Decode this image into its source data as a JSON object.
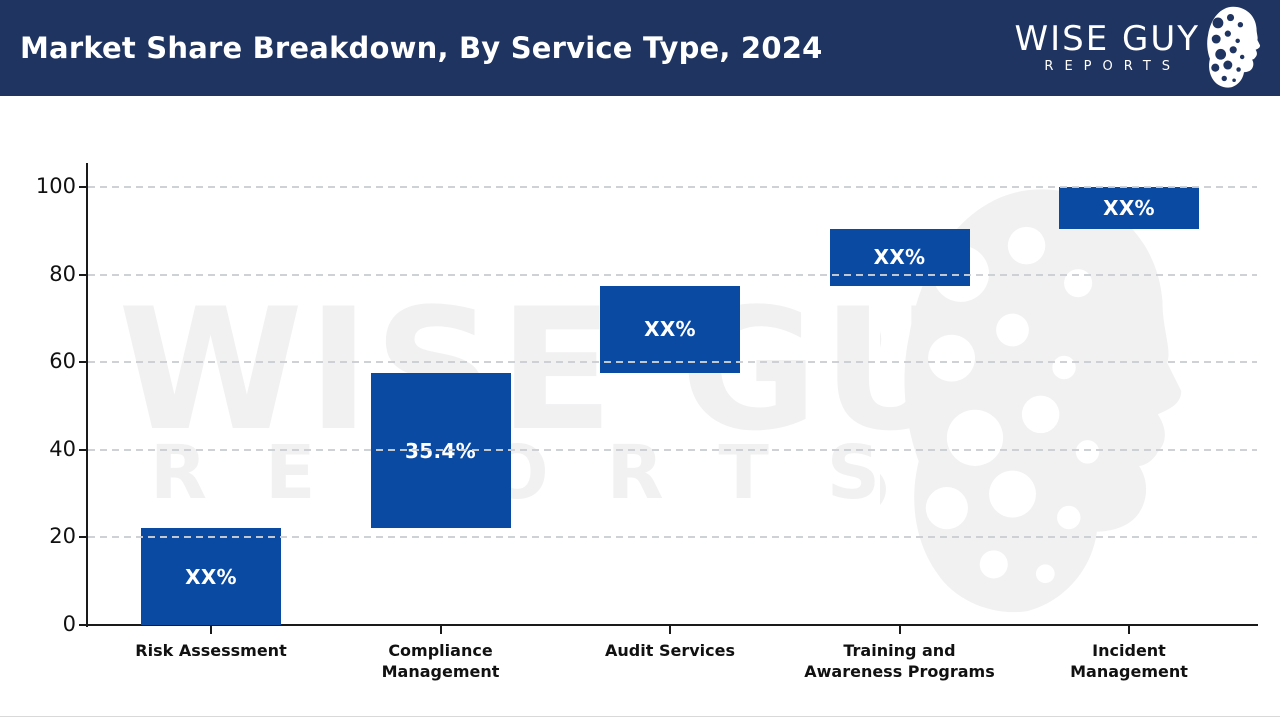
{
  "header": {
    "title": "Market Share Breakdown, By Service Type, 2024",
    "logo": {
      "line1": "WISE GUY",
      "line2": "REPORTS"
    }
  },
  "watermark": {
    "line1": "WISE GUY",
    "line2": "REPORTS"
  },
  "chart_data": {
    "type": "bar",
    "subtype": "stacked-waterfall",
    "title": "Market Share Breakdown, By Service Type, 2024",
    "categories": [
      "Risk Assessment",
      "Compliance Management",
      "Audit Services",
      "Training and Awareness Programs",
      "Incident Management"
    ],
    "category_lines": [
      [
        "Risk Assessment"
      ],
      [
        "Compliance",
        "Management"
      ],
      [
        "Audit Services"
      ],
      [
        "Training and",
        "Awareness Programs"
      ],
      [
        "Incident",
        "Management"
      ]
    ],
    "values": [
      22.1,
      35.4,
      20.0,
      12.9,
      9.6
    ],
    "cumulative_ends": [
      22.1,
      57.5,
      77.5,
      90.4,
      100
    ],
    "bar_labels": [
      "XX%",
      "35.4%",
      "XX%",
      "XX%",
      "XX%"
    ],
    "yticks": [
      0,
      20,
      40,
      60,
      80,
      100
    ],
    "ylim": [
      0,
      105
    ],
    "xlabel": "",
    "ylabel": "",
    "grid": "horizontal-dashed-over-bars",
    "legend": "none",
    "colors": {
      "bar": "#0b4aa2",
      "header_bg": "#1f3460",
      "grid": "#cbcfd4",
      "axis": "#1a1a1a",
      "bar_label_text": "#ffffff",
      "watermark": "#f1f1f2"
    }
  }
}
